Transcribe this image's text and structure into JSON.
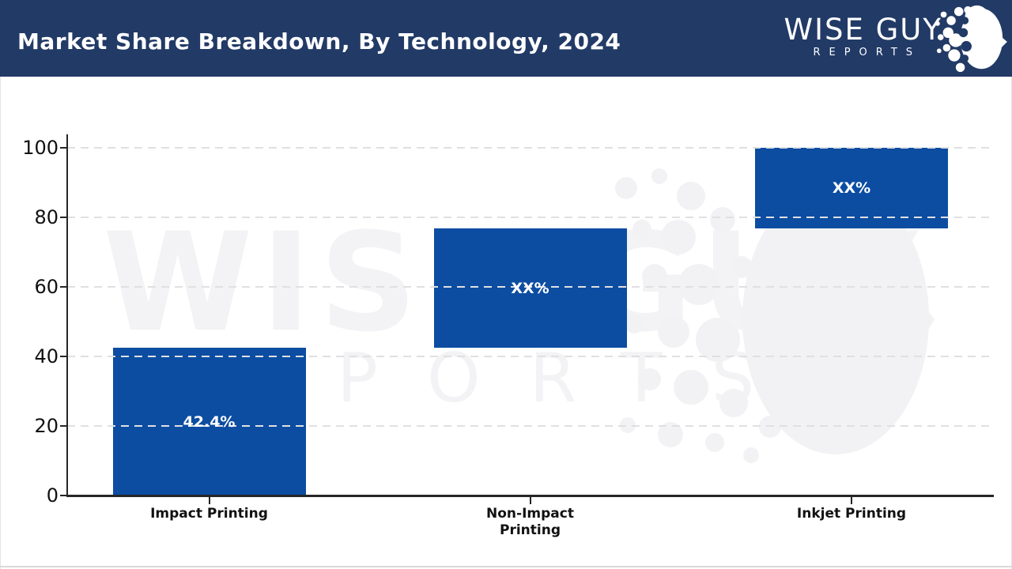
{
  "header": {
    "title": "Market Share Breakdown, By Technology, 2024",
    "logo_line1": "WISE GUY",
    "logo_line2": "REPORTS"
  },
  "watermark": {
    "line1": "WISE GUY",
    "line2": "REPORTS"
  },
  "colors": {
    "header_bg": "#223A66",
    "bar_blue": "#0C4DA2",
    "gridline": "#E0E0E0",
    "axis": "#262626",
    "watermark_gray": "#F3F3F5"
  },
  "chart_data": {
    "type": "bar",
    "subtype": "cumulative-waterfall",
    "title": "Market Share Breakdown, By Technology, 2024",
    "categories": [
      "Impact Printing",
      "Non-Impact\nPrinting",
      "Inkjet Printing"
    ],
    "segments": [
      {
        "category": "Impact Printing",
        "start": 0,
        "end": 42.4,
        "value_label": "42.4%",
        "value": 42.4
      },
      {
        "category": "Non-Impact Printing",
        "start": 42.4,
        "end": 76.9,
        "value_label": "XX%",
        "value_estimated": 34.5
      },
      {
        "category": "Inkjet Printing",
        "start": 76.9,
        "end": 100,
        "value_label": "XX%",
        "value_estimated": 23.1
      }
    ],
    "ylim": [
      0,
      100
    ],
    "yticks": [
      0,
      20,
      40,
      60,
      80,
      100
    ],
    "xlabel": "",
    "ylabel": "",
    "grid": true,
    "legend": false,
    "bar_color": "#0C4DA2"
  }
}
